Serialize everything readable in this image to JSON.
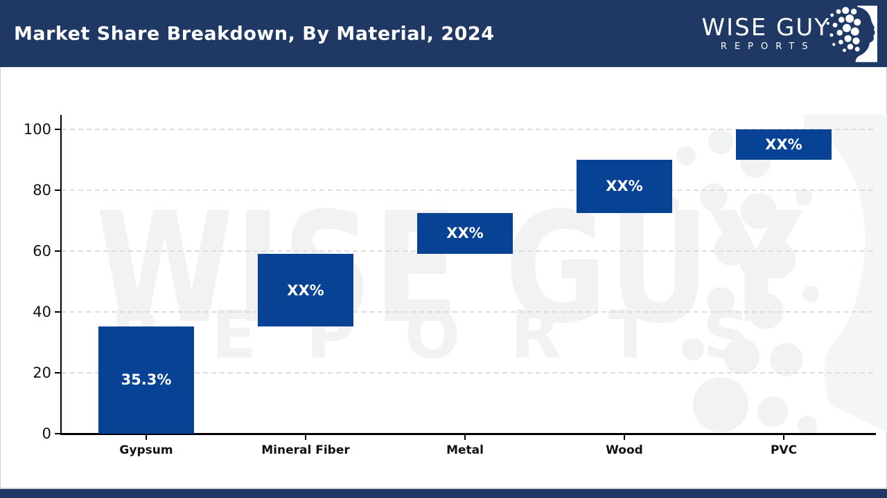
{
  "header": {
    "title": "Market Share Breakdown, By Material, 2024",
    "logo": {
      "line1": "WISE GUY",
      "line2": "REPORTS"
    },
    "bg_color": "#1f3864"
  },
  "watermark": {
    "line1": "WISE GUY",
    "line2": "REPORTS"
  },
  "chart_data": {
    "type": "bar",
    "subtype": "waterfall",
    "title": "Market Share Breakdown, By Material, 2024",
    "categories": [
      "Gypsum",
      "Mineral Fiber",
      "Metal",
      "Wood",
      "PVC"
    ],
    "bars": [
      {
        "category": "Gypsum",
        "start": 0,
        "end": 35.3,
        "label": "35.3%"
      },
      {
        "category": "Mineral Fiber",
        "start": 35.3,
        "end": 59.0,
        "label": "XX%"
      },
      {
        "category": "Metal",
        "start": 59.0,
        "end": 72.6,
        "label": "XX%"
      },
      {
        "category": "Wood",
        "start": 72.6,
        "end": 90.0,
        "label": "XX%"
      },
      {
        "category": "PVC",
        "start": 90.0,
        "end": 100.0,
        "label": "XX%"
      }
    ],
    "xlabel": "",
    "ylabel": "",
    "ylim": [
      0,
      100
    ],
    "yticks": [
      0,
      20,
      40,
      60,
      80,
      100
    ],
    "legend": "none",
    "grid": "horizontal-dashed",
    "grid_color": "#dcdcdc",
    "bar_color": "#074294",
    "bar_label_color": "#ffffff",
    "axis_color": "#000000"
  },
  "footer": {
    "bg_color": "#1f3864"
  }
}
